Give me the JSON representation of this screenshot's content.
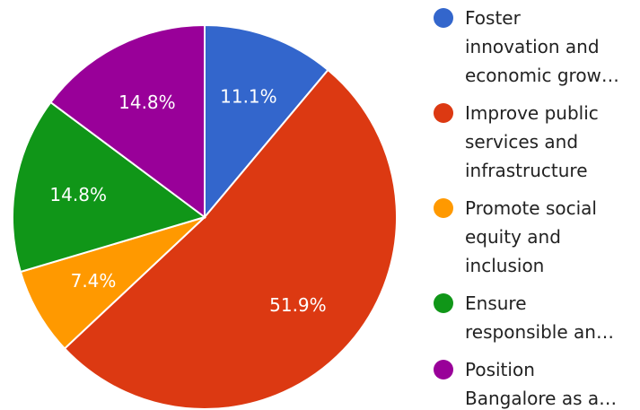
{
  "chart_data": {
    "type": "pie",
    "title": "",
    "legend_position": "right",
    "slices": [
      {
        "label": "Foster innovation and economic grow…",
        "legend_lines": [
          "Foster",
          "innovation and",
          "economic grow…"
        ],
        "value": 11.1,
        "value_label": "11.1%",
        "color": "#3366cc"
      },
      {
        "label": "Improve public services and infrastructure",
        "legend_lines": [
          "Improve public",
          "services and",
          "infrastructure"
        ],
        "value": 51.9,
        "value_label": "51.9%",
        "color": "#dc3912"
      },
      {
        "label": "Promote social equity and inclusion",
        "legend_lines": [
          "Promote social",
          "equity and",
          "inclusion"
        ],
        "value": 7.4,
        "value_label": "7.4%",
        "color": "#ff9900"
      },
      {
        "label": "Ensure responsible an…",
        "legend_lines": [
          "Ensure",
          "responsible an…"
        ],
        "value": 14.8,
        "value_label": "14.8%",
        "color": "#109618"
      },
      {
        "label": "Position Bangalore as a…",
        "legend_lines": [
          "Position",
          "Bangalore as a…"
        ],
        "value": 14.8,
        "value_label": "14.8%",
        "color": "#990099"
      }
    ]
  }
}
